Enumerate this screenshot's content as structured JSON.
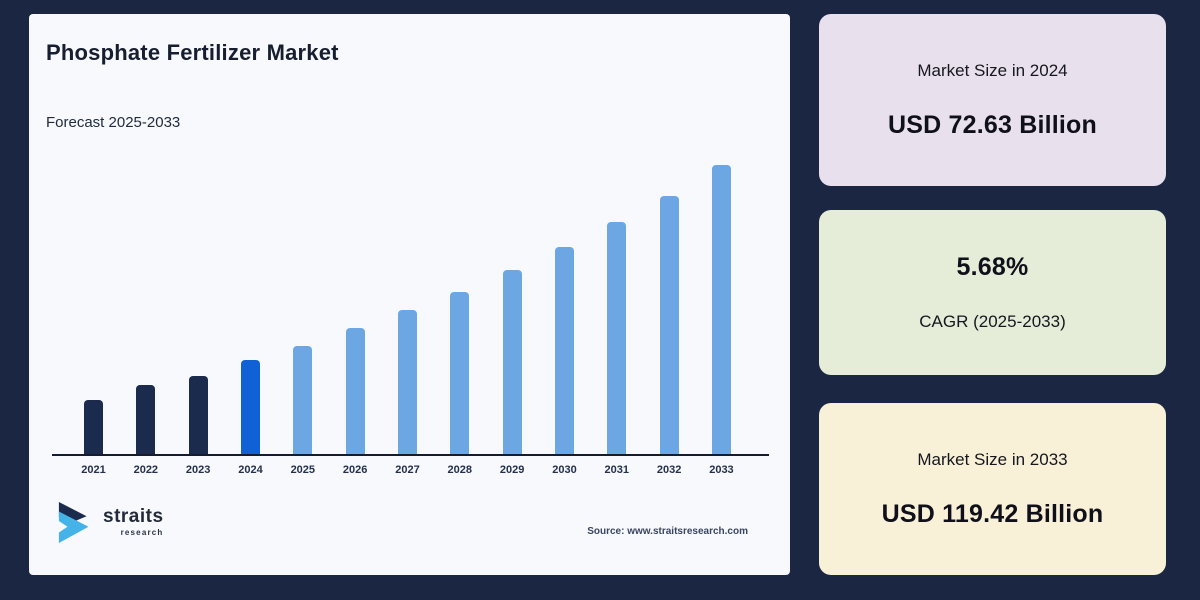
{
  "colors": {
    "page_background": "#1B2642",
    "panel_background": "#F7F9FC",
    "bar_historical": "#1B2B4D",
    "bar_current": "#1161D6",
    "bar_forecast": "#6CA7E4",
    "axis": "#141C2E",
    "card_2024_background": "#E8E1ED",
    "card_cagr_background": "#E5EDD9",
    "card_2033_background": "#F8F1D8",
    "logo_navy": "#1B2B4D",
    "logo_blue": "#45B3E8"
  },
  "chart_panel": {
    "title": "Phosphate Fertilizer Market",
    "subtitle": "Forecast 2025-2033",
    "source": "Source: www.straitsresearch.com",
    "logo": {
      "brand": "straits",
      "sub": "research"
    }
  },
  "cards": {
    "size2024": {
      "label": "Market Size in 2024",
      "value": "USD 72.63 Billion"
    },
    "cagr": {
      "value": "5.68%",
      "label": "CAGR (2025-2033)"
    },
    "size2033": {
      "label": "Market Size in 2033",
      "value": "USD 119.42 Billion"
    }
  },
  "chart_data": {
    "type": "bar",
    "title": "Phosphate Fertilizer Market",
    "subtitle": "Forecast 2025-2033",
    "categories": [
      "2021",
      "2022",
      "2023",
      "2024",
      "2025",
      "2026",
      "2027",
      "2028",
      "2029",
      "2030",
      "2031",
      "2032",
      "2033"
    ],
    "series": [
      {
        "name": "Market size (relative bar height, px)",
        "values": [
          54,
          69,
          78,
          94,
          108,
          126,
          144,
          162,
          184,
          207,
          232,
          258,
          289
        ]
      }
    ],
    "labeled_values": {
      "market_size_2024_usd_billion": 72.63,
      "market_size_2033_usd_billion": 119.42,
      "cagr_2025_2033_percent": 5.68
    },
    "historical_years": [
      "2021",
      "2022",
      "2023"
    ],
    "highlight_year": "2024",
    "forecast_years": [
      "2025",
      "2026",
      "2027",
      "2028",
      "2029",
      "2030",
      "2031",
      "2032",
      "2033"
    ],
    "xlabel": "",
    "ylabel": "",
    "axis": {
      "y_axis_visible": false,
      "gridlines": false,
      "x_labels_visible": true
    },
    "legend": "none"
  }
}
